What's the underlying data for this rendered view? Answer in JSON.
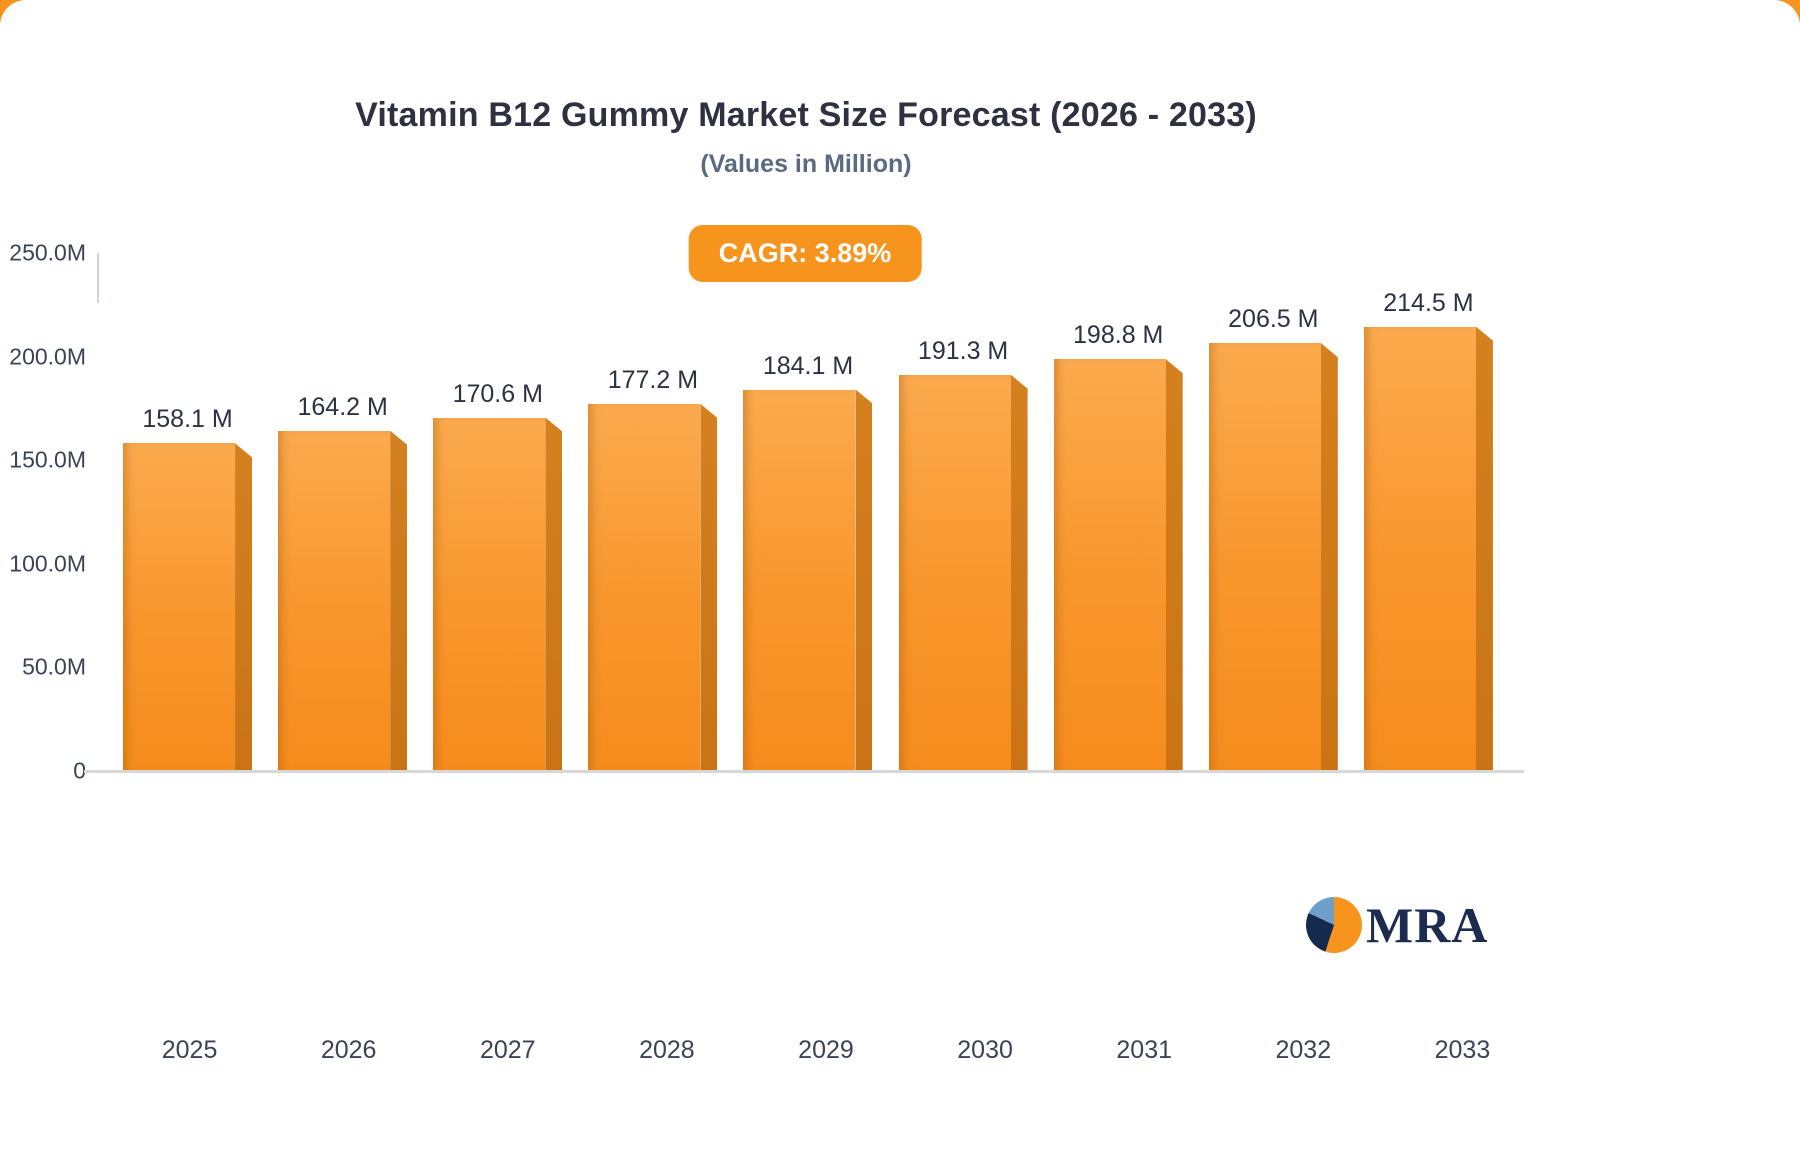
{
  "chart_data": {
    "type": "bar",
    "title": "Vitamin B12 Gummy Market Size Forecast (2026 - 2033)",
    "subtitle": "(Values in Million)",
    "cagr_label": "CAGR: 3.89%",
    "categories": [
      "2025",
      "2026",
      "2027",
      "2028",
      "2029",
      "2030",
      "2031",
      "2032",
      "2033"
    ],
    "values": [
      158.1,
      164.2,
      170.6,
      177.2,
      184.1,
      191.3,
      198.8,
      206.5,
      214.5
    ],
    "value_labels": [
      "158.1 M",
      "164.2 M",
      "170.6 M",
      "177.2 M",
      "184.1 M",
      "191.3 M",
      "198.8 M",
      "206.5 M",
      "214.5 M"
    ],
    "xlabel": "",
    "ylabel": "",
    "ylim": [
      0,
      250
    ],
    "yticks": [
      "250.0M",
      "200.0M",
      "150.0M",
      "100.0M",
      "50.0M",
      "0"
    ],
    "grid": false,
    "legend": false,
    "bar_color": "#f7941d",
    "bar_gradient_top": "#fbaa4e",
    "bar_gradient_bottom": "#f68c1e",
    "bar_side_color": "#c97316",
    "badge_color": "#f7941d",
    "title_color": "#2e3240",
    "subtitle_color": "#5a6a80",
    "axis_label_color": "#3a4454"
  },
  "logo": {
    "text": "MRA",
    "icon": "pie-chart-icon",
    "icon_colors": [
      "#f7941d",
      "#16294f",
      "#6f9ec9"
    ]
  }
}
